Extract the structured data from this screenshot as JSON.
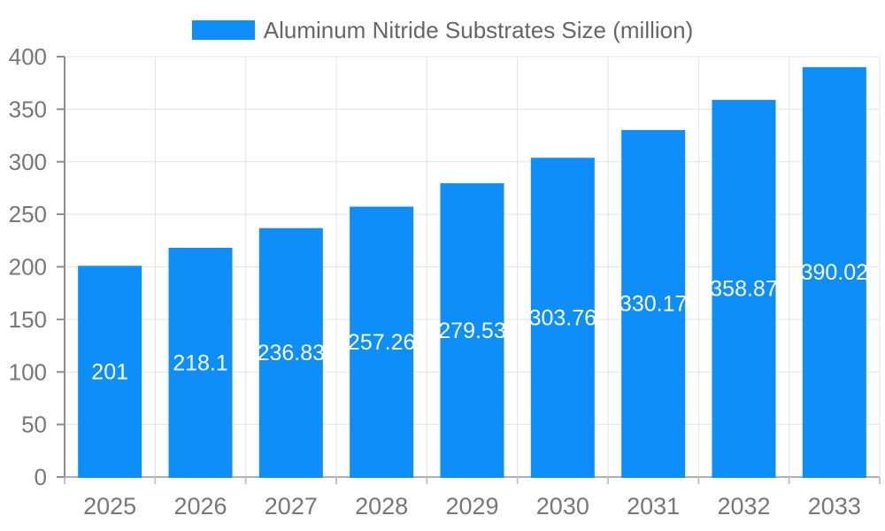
{
  "legend": {
    "label": "Aluminum Nitride Substrates Size (million)"
  },
  "chart_data": {
    "type": "bar",
    "title": "Aluminum Nitride Substrates Size (million)",
    "categories": [
      "2025",
      "2026",
      "2027",
      "2028",
      "2029",
      "2030",
      "2031",
      "2032",
      "2033"
    ],
    "values": [
      201,
      218.1,
      236.83,
      257.26,
      279.53,
      303.76,
      330.17,
      358.87,
      390.02
    ],
    "value_labels": [
      "201",
      "218.1",
      "236.83",
      "257.26",
      "279.53",
      "303.76",
      "330.17",
      "358.87",
      "390.02"
    ],
    "xlabel": "",
    "ylabel": "",
    "ylim": [
      0,
      400
    ],
    "yticks": [
      0,
      50,
      100,
      150,
      200,
      250,
      300,
      350,
      400
    ],
    "grid": true,
    "legend_position": "top",
    "bar_color": "#0d8ef8",
    "value_label_color": "#ffffff",
    "axis_text_color": "#75777b",
    "legend_text_color": "#666666",
    "grid_color": "#e3e3e3",
    "y_axis_line_color": "#8e8e8e",
    "x_axis_line_color": "#b0b0b0",
    "x_tick_color": "#c4c4c4"
  }
}
